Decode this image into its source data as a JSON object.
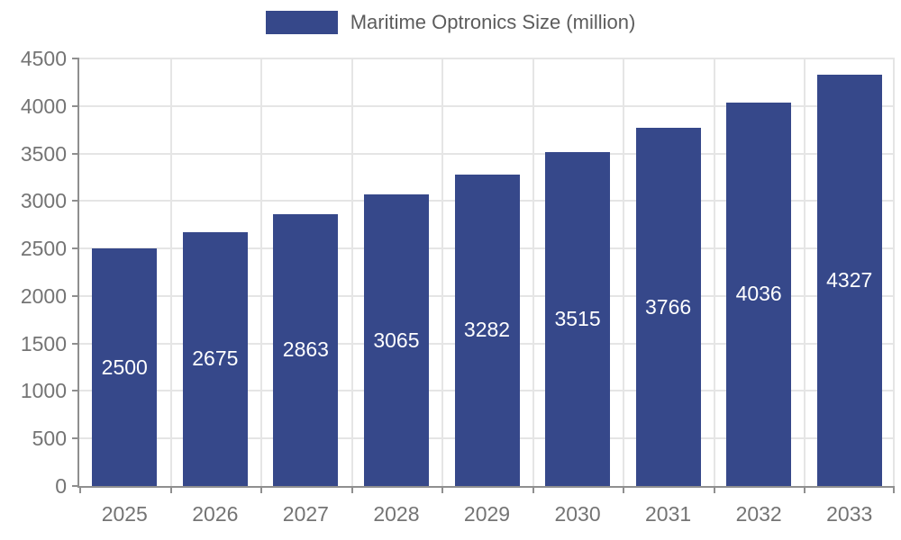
{
  "legend": {
    "label": "Maritime Optronics Size (million)"
  },
  "chart_data": {
    "type": "bar",
    "title": "Maritime Optronics Size (million)",
    "series_name": "Maritime Optronics Size (million)",
    "categories": [
      "2025",
      "2026",
      "2027",
      "2028",
      "2029",
      "2030",
      "2031",
      "2032",
      "2033"
    ],
    "values": [
      2500,
      2675,
      2863,
      3065,
      3282,
      3515,
      3766,
      4036,
      4327
    ],
    "xlabel": "",
    "ylabel": "",
    "ylim": [
      0,
      4500
    ],
    "yticks": [
      0,
      500,
      1000,
      1500,
      2000,
      2500,
      3000,
      3500,
      4000,
      4500
    ],
    "grid": true,
    "legend_position": "top",
    "bar_labels_inside": true,
    "colors": {
      "bar": "#36488a",
      "bar_label": "#ffffff",
      "grid_line": "#e5e5e5",
      "axis_line": "#8f8f8f",
      "tick_label": "#747474",
      "legend_text": "#5c5c5c",
      "background": "#ffffff"
    }
  }
}
